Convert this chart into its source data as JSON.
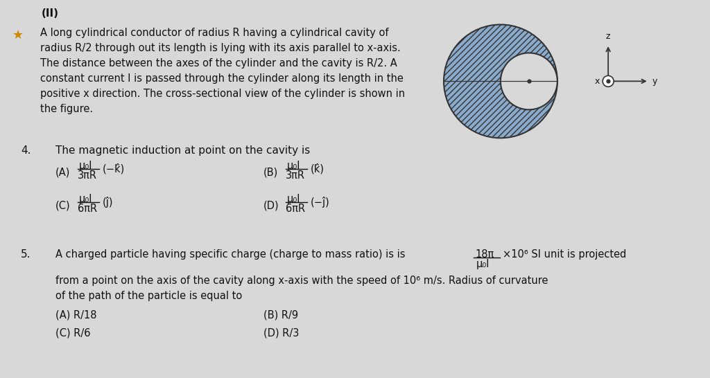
{
  "bg_color": "#d8d8d8",
  "text_color": "#111111",
  "hatch_color": "#8aabcc",
  "hatch_pattern": "////",
  "circle_edge_color": "#333333",
  "axis_color": "#333333",
  "cavity_bg": "#d8d8d8",
  "title_II": "(II)",
  "star_color": "#cc8800",
  "problem_lines": [
    "A long cylindrical conductor of radius R having a cylindrical cavity of",
    "radius R/2 through out its length is lying with its axis parallel to x-axis.",
    "The distance between the axes of the cylinder and the cavity is R/2. A",
    "constant current I is passed through the cylinder along its length in the",
    "positive x direction. The cross-sectional view of the cylinder is shown in",
    "the figure."
  ],
  "q4_label": "4.",
  "q4_text": "The magnetic induction at point on the cavity is",
  "q5_label": "5.",
  "q5_pre": "A charged particle having specific charge (charge to mass ratio) is",
  "q5_frac_top": "18π",
  "q5_frac_bot": "μ₀I",
  "q5_post": "×10⁶ SI unit is projected",
  "q5_line2": "from a point on the axis of the cavity along x-axis with the speed of 10⁶ m/s. Radius of curvature",
  "q5_line3": "of the path of the particle is equal to",
  "q5_A": "(A) R/18",
  "q5_B": "(B) R/9",
  "q5_C": "(C) R/6",
  "q5_D": "(D) R/3"
}
